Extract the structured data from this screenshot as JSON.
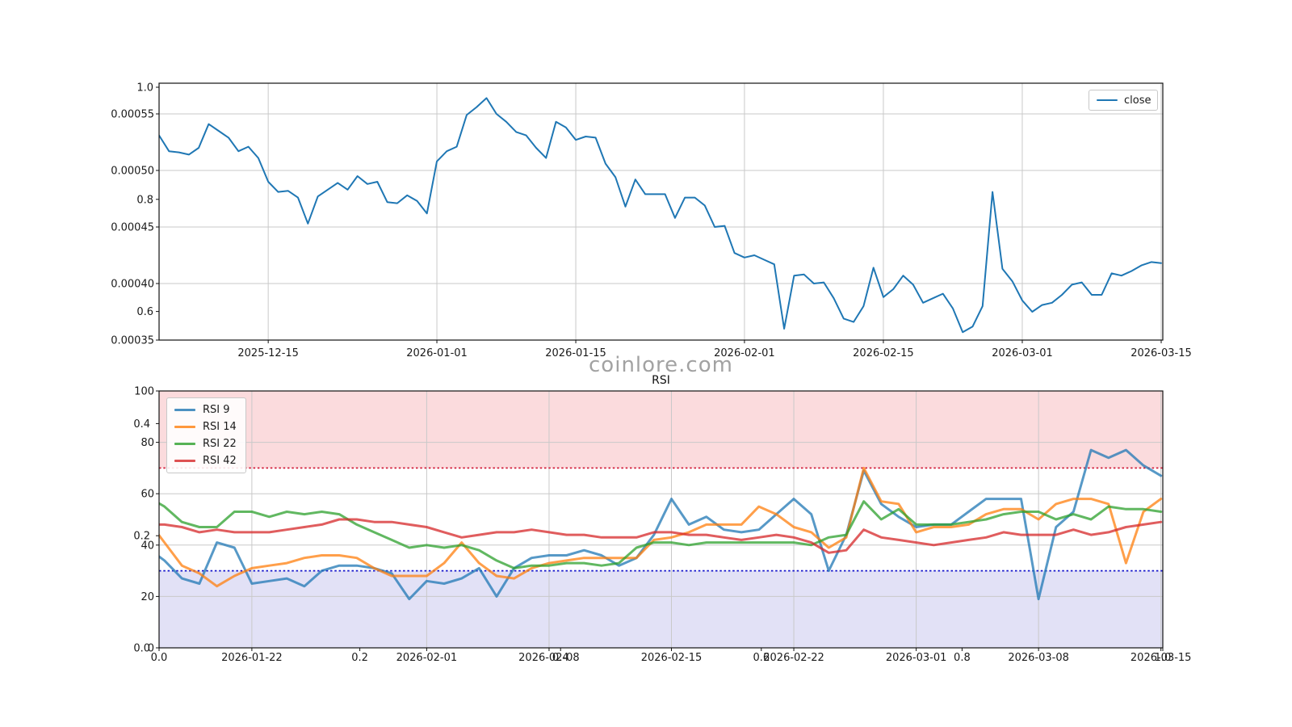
{
  "watermark": "coinlore.com",
  "rsi_title": "RSI",
  "top_legend": {
    "label": "close"
  },
  "rsi_legend": [
    {
      "label": "RSI 9",
      "color": "#1f77b4"
    },
    {
      "label": "RSI 14",
      "color": "#ff7f0e"
    },
    {
      "label": "RSI 22",
      "color": "#2ca02c"
    },
    {
      "label": "RSI 42",
      "color": "#d62728"
    }
  ],
  "style": {
    "grid": "#c9c9c9",
    "spine": "#111111",
    "text": "#1a1a1a",
    "watermark_color": "#a2a2a2",
    "background": "#ffffff"
  },
  "overlay_axis": {
    "yticks": [
      {
        "label": "1.0",
        "f": 1.0
      },
      {
        "label": "0.8",
        "f": 0.8
      },
      {
        "label": "0.6",
        "f": 0.6
      },
      {
        "label": "0.4",
        "f": 0.4
      },
      {
        "label": "0.2",
        "f": 0.2
      },
      {
        "label": "0.0",
        "f": 0.0
      }
    ],
    "xticks": [
      {
        "label": "0.0",
        "f": 0.0
      },
      {
        "label": "0.2",
        "f": 0.2
      },
      {
        "label": "0.4",
        "f": 0.4
      },
      {
        "label": "0.6",
        "f": 0.6
      },
      {
        "label": "0.8",
        "f": 0.8
      },
      {
        "label": "1.0",
        "f": 1.0
      }
    ]
  },
  "chart_data": [
    {
      "type": "line",
      "name": "close-price-chart",
      "title": "",
      "legend_position": "upper right",
      "grid": true,
      "x_range": [
        "2025-12-04",
        "2026-03-15"
      ],
      "x_step": "1 day",
      "ylim": [
        0.00035,
        0.000577
      ],
      "xticks": [
        {
          "label": "2025-12-15",
          "i": 11
        },
        {
          "label": "2026-01-01",
          "i": 28
        },
        {
          "label": "2026-01-15",
          "i": 42
        },
        {
          "label": "2026-02-01",
          "i": 59
        },
        {
          "label": "2026-02-15",
          "i": 73
        },
        {
          "label": "2026-03-01",
          "i": 87
        },
        {
          "label": "2026-03-15",
          "i": 101
        }
      ],
      "yticks": [
        {
          "label": "0.00035",
          "v": 0.00035
        },
        {
          "label": "0.00040",
          "v": 0.0004
        },
        {
          "label": "0.00045",
          "v": 0.00045
        },
        {
          "label": "0.00050",
          "v": 0.0005
        },
        {
          "label": "0.00055",
          "v": 0.00055
        }
      ],
      "series": [
        {
          "name": "close",
          "color": "#1f77b4",
          "values": [
            0.000531,
            0.000517,
            0.000516,
            0.000514,
            0.00052,
            0.000541,
            0.000535,
            0.000529,
            0.000517,
            0.000521,
            0.000511,
            0.00049,
            0.000481,
            0.000482,
            0.000476,
            0.000453,
            0.000477,
            0.000483,
            0.000489,
            0.000483,
            0.000495,
            0.000488,
            0.00049,
            0.000472,
            0.000471,
            0.000478,
            0.000473,
            0.000462,
            0.000508,
            0.000517,
            0.000521,
            0.000549,
            0.000556,
            0.000564,
            0.00055,
            0.000543,
            0.000534,
            0.000531,
            0.00052,
            0.000511,
            0.000543,
            0.000538,
            0.000527,
            0.00053,
            0.000529,
            0.000506,
            0.000494,
            0.000468,
            0.000492,
            0.000479,
            0.000479,
            0.000479,
            0.000458,
            0.000476,
            0.000476,
            0.000469,
            0.00045,
            0.000451,
            0.000427,
            0.000423,
            0.000425,
            0.000421,
            0.000417,
            0.00036,
            0.000407,
            0.000408,
            0.0004,
            0.000401,
            0.000387,
            0.000369,
            0.000366,
            0.00038,
            0.000414,
            0.000388,
            0.000395,
            0.000407,
            0.000399,
            0.000383,
            0.000387,
            0.000391,
            0.000378,
            0.000357,
            0.000362,
            0.00038,
            0.000481,
            0.000413,
            0.000402,
            0.000385,
            0.000375,
            0.000381,
            0.000383,
            0.00039,
            0.000399,
            0.000401,
            0.00039,
            0.00039,
            0.000409,
            0.000407,
            0.000411,
            0.000416,
            0.000419,
            0.000418
          ]
        }
      ]
    },
    {
      "type": "line",
      "name": "rsi-chart",
      "title": "RSI",
      "legend_position": "upper left",
      "grid": true,
      "x_range": [
        "2026-01-16",
        "2026-03-15"
      ],
      "x_step": "1 day",
      "ylim": [
        0,
        100
      ],
      "xticks": [
        {
          "label": "2026-01-22",
          "i": 6
        },
        {
          "label": "2026-02-01",
          "i": 16
        },
        {
          "label": "2026-02-08",
          "i": 23
        },
        {
          "label": "2026-02-15",
          "i": 30
        },
        {
          "label": "2026-02-22",
          "i": 37
        },
        {
          "label": "2026-03-01",
          "i": 44
        },
        {
          "label": "2026-03-08",
          "i": 51
        },
        {
          "label": "2026-03-15",
          "i": 58
        }
      ],
      "yticks": [
        {
          "label": "100",
          "v": 100
        },
        {
          "label": "80",
          "v": 80
        },
        {
          "label": "60",
          "v": 60
        },
        {
          "label": "40",
          "v": 40
        },
        {
          "label": "20",
          "v": 20
        },
        {
          "label": "0",
          "v": 0
        }
      ],
      "bands": [
        {
          "name": "overbought-band",
          "from": 70,
          "to": 100,
          "color": "#fbdbdd"
        },
        {
          "name": "oversold-band",
          "from": 0,
          "to": 30,
          "color": "#e2e1f6"
        }
      ],
      "thresholds": [
        {
          "name": "overbought-line",
          "v": 70,
          "color": "#d21f3c"
        },
        {
          "name": "oversold-line",
          "v": 30,
          "color": "#1414cc"
        }
      ],
      "series": [
        {
          "name": "RSI 9",
          "color": "#1f77b4",
          "values": [
            39,
            34,
            27,
            25,
            41,
            39,
            25,
            26,
            27,
            24,
            30,
            32,
            32,
            31,
            29,
            19,
            26,
            25,
            27,
            31,
            20,
            31,
            35,
            36,
            36,
            38,
            36,
            32,
            35,
            44,
            58,
            48,
            51,
            46,
            45,
            46,
            52,
            58,
            52,
            30,
            44,
            69,
            56,
            51,
            47,
            48,
            48,
            53,
            58,
            58,
            58,
            19,
            47,
            53,
            77,
            74,
            77,
            71,
            67
          ]
        },
        {
          "name": "RSI 14",
          "color": "#ff7f0e",
          "values": [
            50,
            41,
            32,
            29,
            24,
            28,
            31,
            32,
            33,
            35,
            36,
            36,
            35,
            31,
            28,
            28,
            28,
            33,
            41,
            33,
            28,
            27,
            31,
            33,
            34,
            35,
            35,
            35,
            35,
            42,
            43,
            45,
            48,
            48,
            48,
            55,
            52,
            47,
            45,
            39,
            43,
            70,
            57,
            56,
            45,
            47,
            47,
            48,
            52,
            54,
            54,
            50,
            56,
            58,
            58,
            56,
            33,
            53,
            58
          ]
        },
        {
          "name": "RSI 22",
          "color": "#2ca02c",
          "values": [
            59,
            55,
            49,
            47,
            47,
            53,
            53,
            51,
            53,
            52,
            53,
            52,
            48,
            45,
            42,
            39,
            40,
            39,
            40,
            38,
            34,
            31,
            32,
            32,
            33,
            33,
            32,
            33,
            39,
            41,
            41,
            40,
            41,
            41,
            41,
            41,
            41,
            41,
            40,
            43,
            44,
            57,
            50,
            54,
            48,
            48,
            48,
            49,
            50,
            52,
            53,
            53,
            50,
            52,
            50,
            55,
            54,
            54,
            53
          ]
        },
        {
          "name": "RSI 42",
          "color": "#d62728",
          "values": [
            48,
            48,
            47,
            45,
            46,
            45,
            45,
            45,
            46,
            47,
            48,
            50,
            50,
            49,
            49,
            48,
            47,
            45,
            43,
            44,
            45,
            45,
            46,
            45,
            44,
            44,
            43,
            43,
            43,
            45,
            45,
            44,
            44,
            43,
            42,
            43,
            44,
            43,
            41,
            37,
            38,
            46,
            43,
            42,
            41,
            40,
            41,
            42,
            43,
            45,
            44,
            44,
            44,
            46,
            44,
            45,
            47,
            48,
            49
          ]
        }
      ]
    }
  ]
}
